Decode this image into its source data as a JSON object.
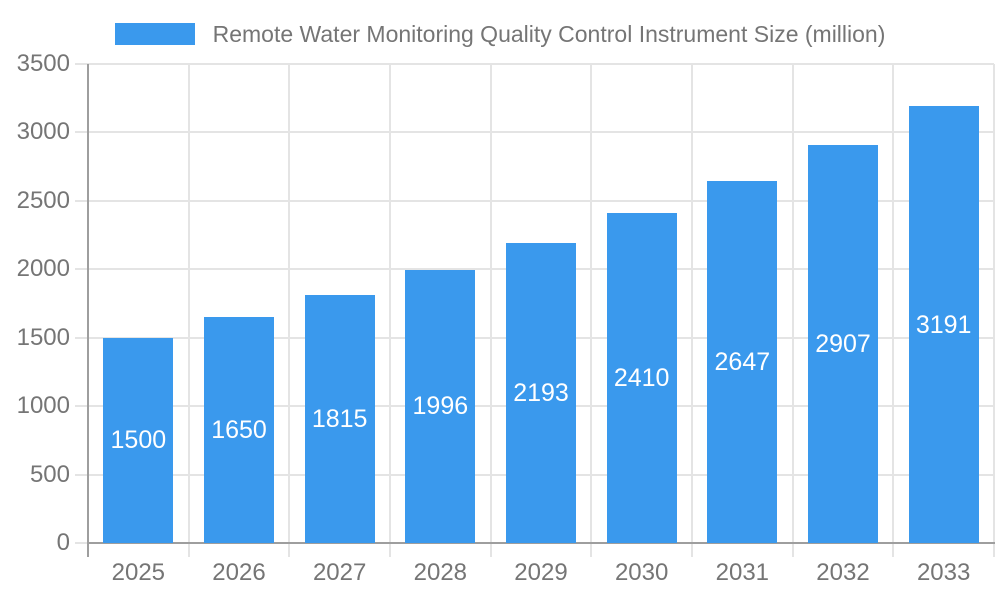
{
  "chart_data": {
    "type": "bar",
    "title": "Remote Water Monitoring Quality Control Instrument Size (million)",
    "legend": {
      "position": "top",
      "entries": [
        "Remote Water Monitoring Quality Control Instrument Size (million)"
      ]
    },
    "categories": [
      "2025",
      "2026",
      "2027",
      "2028",
      "2029",
      "2030",
      "2031",
      "2032",
      "2033"
    ],
    "series": [
      {
        "name": "Remote Water Monitoring Quality Control Instrument Size (million)",
        "values": [
          1500,
          1650,
          1815,
          1996,
          2193,
          2410,
          2647,
          2907,
          3191
        ]
      }
    ],
    "bar_value_labels": [
      "1500",
      "1650",
      "1815",
      "1996",
      "2193",
      "2410",
      "2647",
      "2907",
      "3191"
    ],
    "bar_label_position": "inside-center",
    "xlabel": "",
    "ylabel": "",
    "ylim": [
      0,
      3500
    ],
    "yticks": [
      0,
      500,
      1000,
      1500,
      2000,
      2500,
      3000,
      3500
    ],
    "grid": true
  },
  "colors": {
    "bar": "#3a99ed",
    "bar_value_text": "#ffffff",
    "axis_text": "#757575",
    "axis_line": "#9e9e9e",
    "gridline": "#e4e4e4",
    "background": "#ffffff"
  }
}
